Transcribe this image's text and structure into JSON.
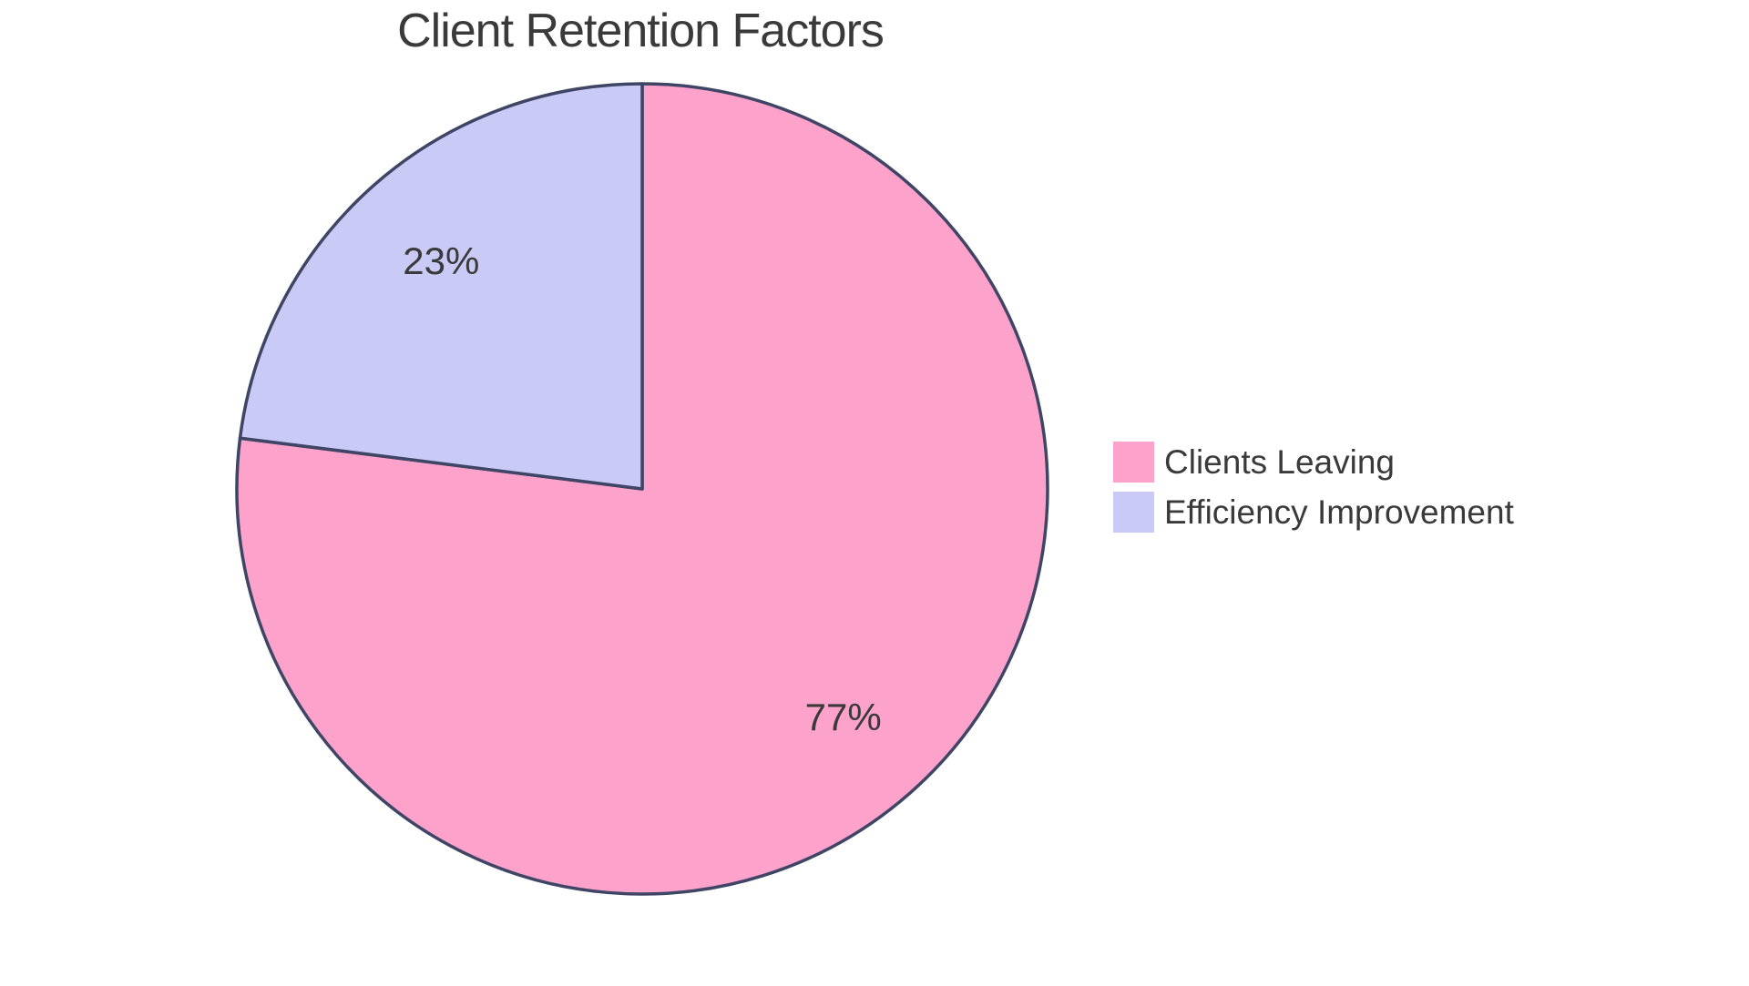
{
  "page": {
    "background_color": "#ffffff"
  },
  "chart_data": {
    "type": "pie",
    "title": "Client Retention Factors",
    "categories": [
      "Clients Leaving",
      "Efficiency Improvement"
    ],
    "values": [
      77,
      23
    ],
    "slices": [
      {
        "label": "Clients Leaving",
        "value": 77,
        "percent_label": "77%",
        "color": "#fca2cb"
      },
      {
        "label": "Efficiency Improvement",
        "value": 23,
        "percent_label": "23%",
        "color": "#c9cbf6"
      }
    ],
    "slice_border_color": "#3f4565",
    "title_text_color": "#3a3a3a",
    "label_text_color": "#3a3a3a",
    "legend_text_color": "#3a3a3a",
    "legend_position": "right",
    "start_angle": "12 o'clock",
    "direction": "clockwise",
    "label_style": "percent inside slices",
    "legend_items": [
      "Clients Leaving",
      "Efficiency Improvement"
    ]
  }
}
